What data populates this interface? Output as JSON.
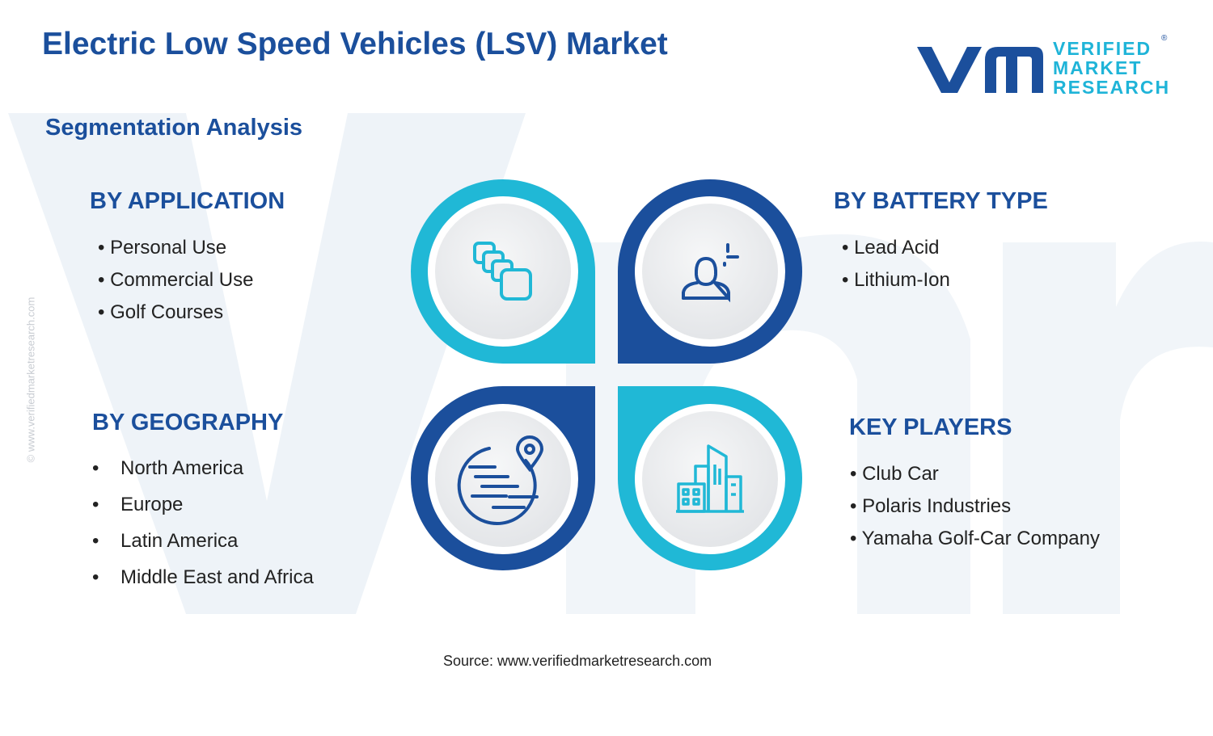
{
  "title": "Electric Low Speed Vehicles (LSV) Market",
  "subtitle": "Segmentation Analysis",
  "logo": {
    "line1": "VERIFIED",
    "line2": "MARKET",
    "line3": "RESEARCH",
    "registered": "®",
    "mark_color": "#1b4f9c",
    "text_color": "#1fb4d8"
  },
  "side_watermark": "© www.verifiedmarketresearch.com",
  "segments": {
    "application": {
      "heading": "BY APPLICATION",
      "items": [
        "Personal Use",
        "Commercial Use",
        "Golf Courses"
      ],
      "icon": "overlapping-squares-icon"
    },
    "battery_type": {
      "heading": "BY BATTERY TYPE",
      "items": [
        "Lead Acid",
        "Lithium-Ion"
      ],
      "icon": "user-profile-icon"
    },
    "geography": {
      "heading": "BY GEOGRAPHY",
      "items": [
        "North America",
        "Europe",
        "Latin America",
        "Middle East and Africa"
      ],
      "icon": "globe-pin-icon"
    },
    "key_players": {
      "heading": "KEY PLAYERS",
      "items": [
        "Club Car",
        "Polaris Industries",
        "Yamaha Golf-Car Company"
      ],
      "icon": "city-buildings-icon"
    }
  },
  "colors": {
    "cyan": "#20b8d6",
    "navy": "#1b4f9c",
    "heading": "#1b4f9c"
  },
  "source": "Source: www.verifiedmarketresearch.com"
}
